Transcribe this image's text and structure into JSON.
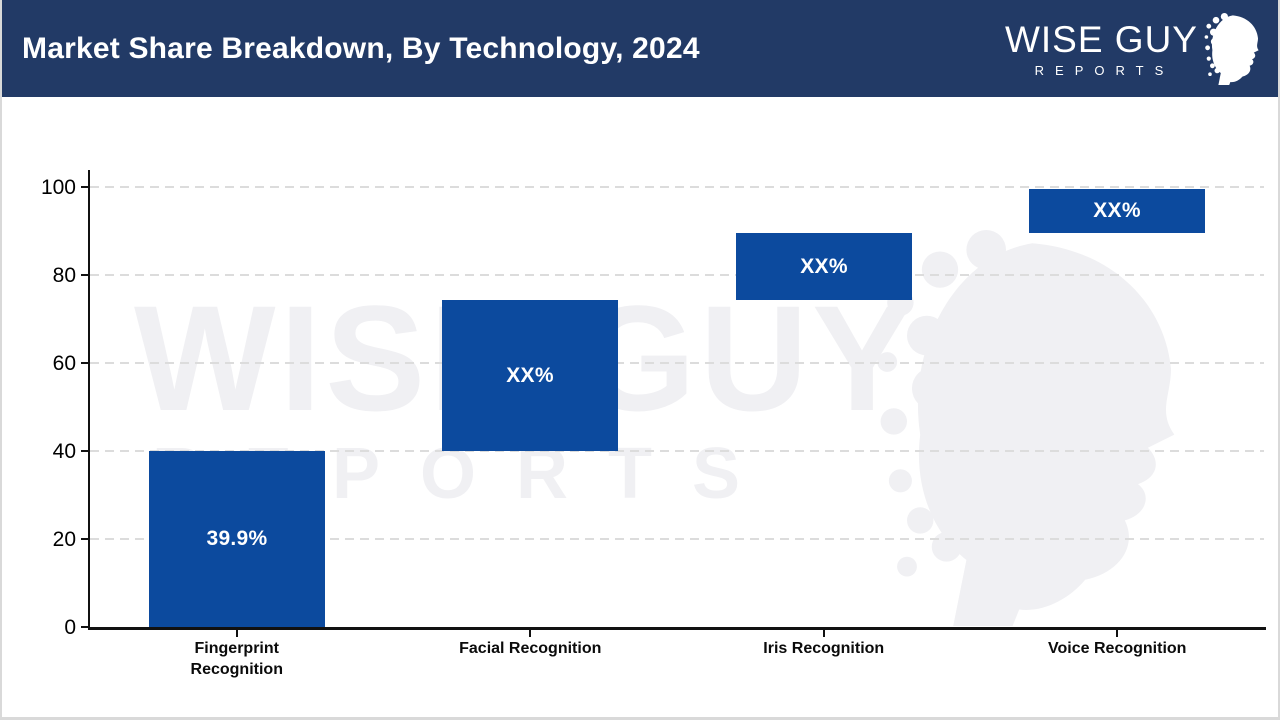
{
  "header": {
    "title": "Market Share Breakdown, By Technology, 2024",
    "logo": {
      "line1": "WISE GUY",
      "line2": "REPORTS"
    }
  },
  "watermark": {
    "line1": "WISE GUY",
    "line2": "REPORTS"
  },
  "colors": {
    "header_bg": "#223a66",
    "bar": "#0c4a9e",
    "grid": "#dcdcdc",
    "axis": "#111111",
    "watermark": "#f0f0f3"
  },
  "chart_data": {
    "type": "bar",
    "subtype": "waterfall-floating-bars",
    "title": "Market Share Breakdown, By Technology, 2024",
    "categories": [
      "Fingerprint\nRecognition",
      "Facial Recognition",
      "Iris Recognition",
      "Voice Recognition"
    ],
    "segments": [
      {
        "category": "Fingerprint Recognition",
        "start": 0,
        "end": 39.9,
        "label": "39.9%"
      },
      {
        "category": "Facial Recognition",
        "start": 40,
        "end": 74.3,
        "label": "XX%"
      },
      {
        "category": "Iris Recognition",
        "start": 74.3,
        "end": 89.5,
        "label": "XX%"
      },
      {
        "category": "Voice Recognition",
        "start": 89.5,
        "end": 99.5,
        "label": "XX%"
      }
    ],
    "ylim": [
      0,
      104
    ],
    "yticks": [
      0,
      20,
      40,
      60,
      80,
      100
    ],
    "xlabel": "",
    "ylabel": "",
    "grid": "horizontal-dashed",
    "legend": "none",
    "bar_color": "#0c4a9e",
    "bar_label_color": "#ffffff"
  }
}
